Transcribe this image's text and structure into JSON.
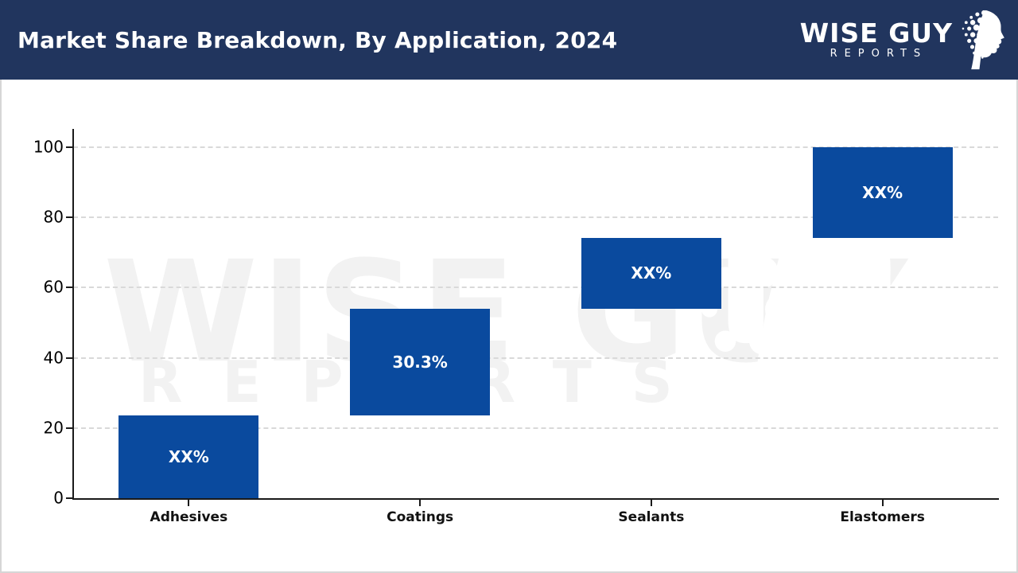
{
  "theme": {
    "header_bg": "#21355e",
    "bar_color": "#0a4a9e",
    "bar_label_color": "#ffffff",
    "grid_color": "#d9d9d9",
    "axis_color": "#1a1a1a",
    "watermark_color": "#f2f2f2"
  },
  "header": {
    "title": "Market Share Breakdown, By Application, 2024",
    "logo": {
      "name": "WISE GUY",
      "subname": "REPORTS",
      "head_icon": "dotted-face-profile"
    }
  },
  "watermark": {
    "line1": "WISE GUY",
    "line2": "REPORTS"
  },
  "chart_data": {
    "type": "bar",
    "subtype": "floating-waterfall-segments",
    "title": "Market Share Breakdown, By Application, 2024",
    "categories": [
      "Adhesives",
      "Coatings",
      "Sealants",
      "Elastomers"
    ],
    "segments": [
      {
        "category": "Adhesives",
        "start": 0,
        "end": 23.6,
        "label": "XX%"
      },
      {
        "category": "Coatings",
        "start": 23.6,
        "end": 54.0,
        "label": "30.3%"
      },
      {
        "category": "Sealants",
        "start": 54.0,
        "end": 74.2,
        "label": "XX%"
      },
      {
        "category": "Elastomers",
        "start": 74.2,
        "end": 100,
        "label": "XX%"
      }
    ],
    "xlabel": "",
    "ylabel": "",
    "ylim": [
      0,
      100
    ],
    "yticks": [
      0,
      20,
      40,
      60,
      80,
      100
    ],
    "grid": "horizontal-dashed",
    "legend": null
  }
}
